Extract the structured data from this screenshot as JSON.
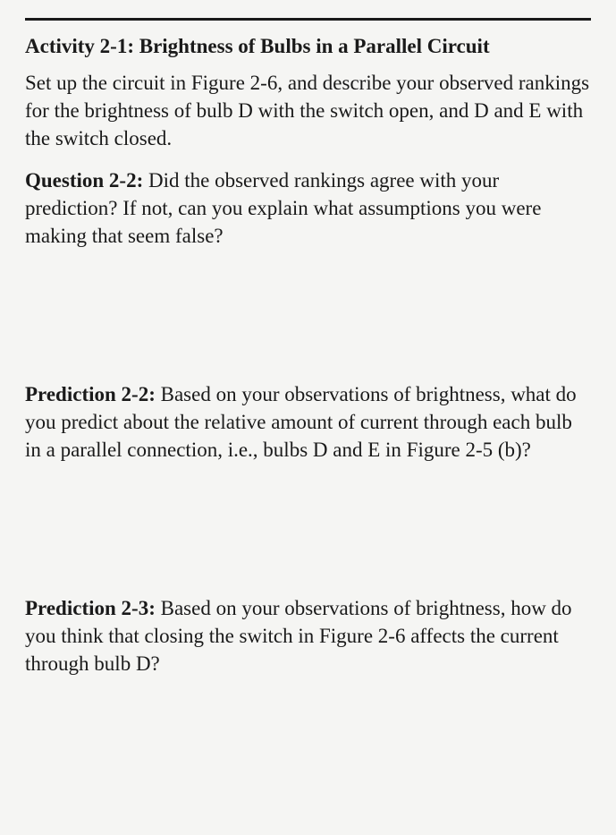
{
  "activity": {
    "title": "Activity 2-1: Brightness of Bulbs in a Parallel Circuit",
    "intro": "Set up the circuit in Figure 2-6, and describe your observed rankings for the brightness of bulb D with the switch open, and D and E with the switch closed."
  },
  "question22": {
    "label": "Question 2-2:",
    "text": "Did the observed rankings agree with your prediction? If not, can you explain what assumptions you were making that seem false?"
  },
  "prediction22": {
    "label": "Prediction 2-2:",
    "text": "Based on your observations of brightness, what do you predict about the relative amount of current through each bulb in a parallel connection, i.e.,  bulbs D and E in Figure 2-5 (b)?"
  },
  "prediction23": {
    "label": "Prediction 2-3:",
    "text": "Based on your observations of brightness, how do you think that closing the switch in Figure 2-6 affects the current through bulb D?"
  }
}
